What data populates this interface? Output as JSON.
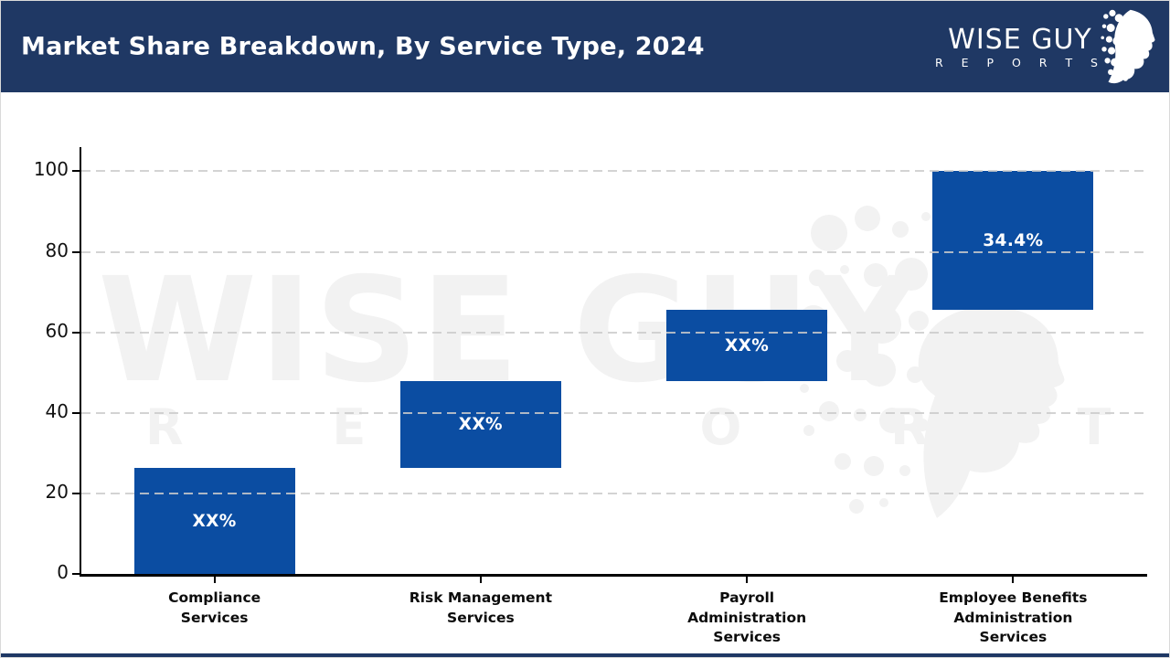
{
  "header": {
    "title": "Market Share Breakdown, By Service Type, 2024",
    "logo": {
      "name": "WISE GUY",
      "subtitle": "R E P O R T S"
    }
  },
  "watermark": {
    "line1": "WISE GUY",
    "line2": "R E P O R T S"
  },
  "colors": {
    "header_bg": "#1f3864",
    "bar_fill": "#0b4da2",
    "bar_label": "#ffffff",
    "watermark": "#f2f2f2"
  },
  "chart_data": {
    "type": "bar",
    "subtype": "waterfall",
    "title": "Market Share Breakdown, By Service Type, 2024",
    "categories": [
      "Compliance\nServices",
      "Risk Management\nServices",
      "Payroll\nAdministration\nServices",
      "Employee Benefits\nAdministration\nServices"
    ],
    "segments": [
      {
        "category": "Compliance Services",
        "start": 0,
        "end": 26.3,
        "value": 26.3,
        "label": "XX%"
      },
      {
        "category": "Risk Management Services",
        "start": 26.3,
        "end": 47.8,
        "value": 21.5,
        "label": "XX%"
      },
      {
        "category": "Payroll Administration Services",
        "start": 47.8,
        "end": 65.6,
        "value": 17.8,
        "label": "XX%"
      },
      {
        "category": "Employee Benefits Administration Services",
        "start": 65.6,
        "end": 100,
        "value": 34.4,
        "label": "34.4%"
      }
    ],
    "yticks": [
      0,
      20,
      40,
      60,
      80,
      100
    ],
    "ylim": [
      0,
      106
    ],
    "xlabel": "",
    "ylabel": "",
    "grid": "horizontal-dashed-over-bars",
    "legend": "none"
  }
}
